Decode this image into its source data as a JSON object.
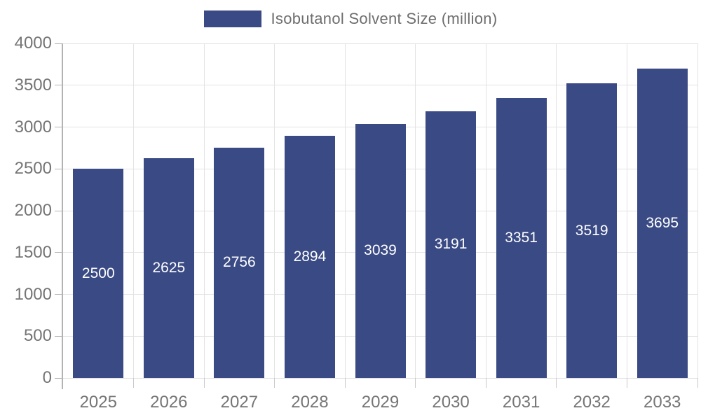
{
  "legend": {
    "label": "Isobutanol Solvent Size (million)",
    "swatch_color": "#3A4A84"
  },
  "chart_data": {
    "type": "bar",
    "title": "Isobutanol Solvent Size (million)",
    "categories": [
      "2025",
      "2026",
      "2027",
      "2028",
      "2029",
      "2030",
      "2031",
      "2032",
      "2033"
    ],
    "values": [
      2500,
      2625,
      2756,
      2894,
      3039,
      3191,
      3351,
      3519,
      3695
    ],
    "xlabel": "",
    "ylabel": "",
    "ylim": [
      0,
      4000
    ],
    "ytick_step": 500,
    "ytick_labels": [
      "0",
      "500",
      "1000",
      "1500",
      "2000",
      "2500",
      "3000",
      "3500",
      "4000"
    ],
    "grid": true,
    "legend_position": "top-center",
    "bar_color": "#3A4A84",
    "value_label_color": "#ffffff",
    "value_labels_inside": true
  },
  "colors": {
    "bar": "#3A4A84",
    "grid": "#e3e3e3",
    "axis": "#b3b3b3",
    "tick_text": "#757575",
    "legend_text": "#6e6e6e",
    "bar_label": "#ffffff",
    "background": "#ffffff"
  }
}
